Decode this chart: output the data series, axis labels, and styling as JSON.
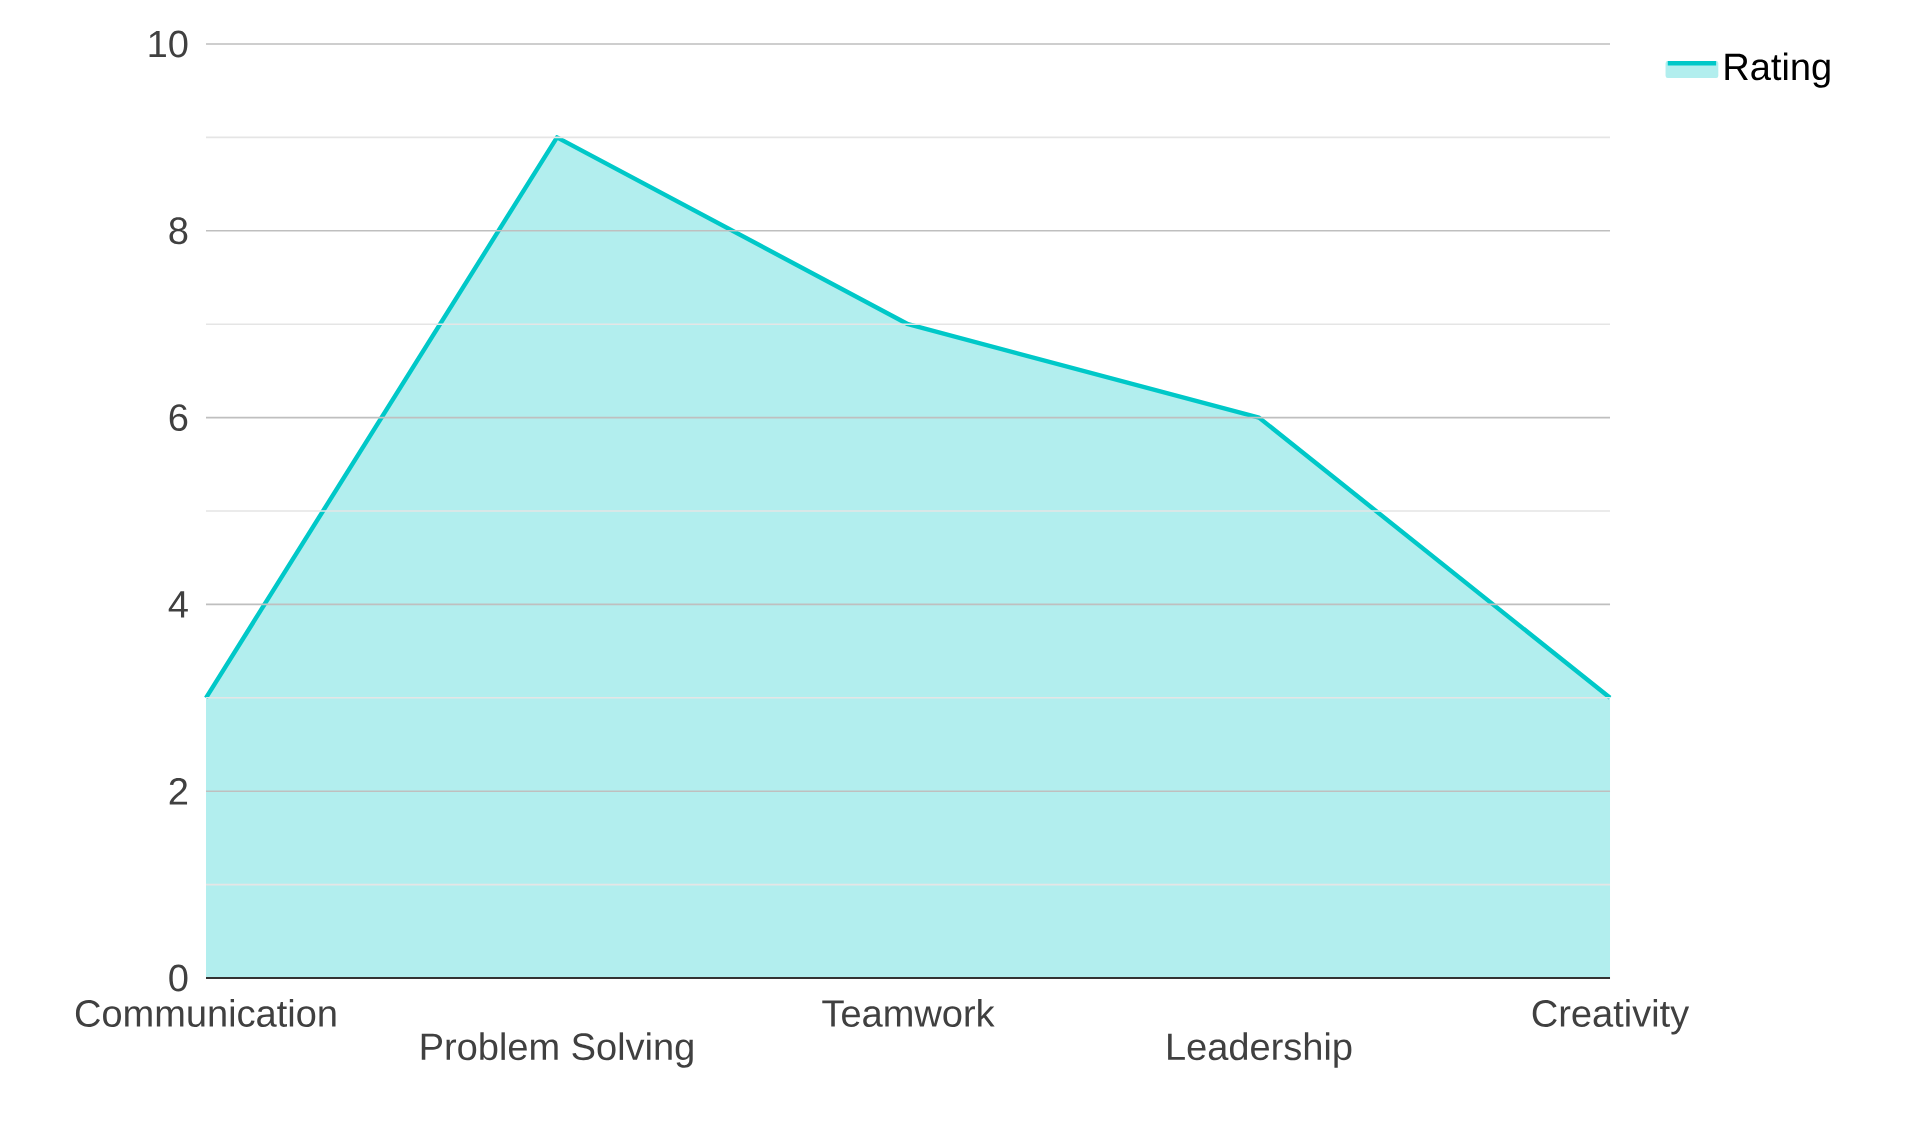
{
  "chart_data": {
    "type": "area",
    "categories": [
      "Communication",
      "Problem Solving",
      "Teamwork",
      "Leadership",
      "Creativity"
    ],
    "series": [
      {
        "name": "Rating",
        "color": "#00c8c8",
        "values": [
          3,
          9,
          7,
          6,
          3
        ]
      }
    ],
    "ylim": [
      0,
      10
    ],
    "yticks": [
      0,
      2,
      4,
      6,
      8,
      10
    ],
    "grid": true,
    "legend": "top right"
  }
}
